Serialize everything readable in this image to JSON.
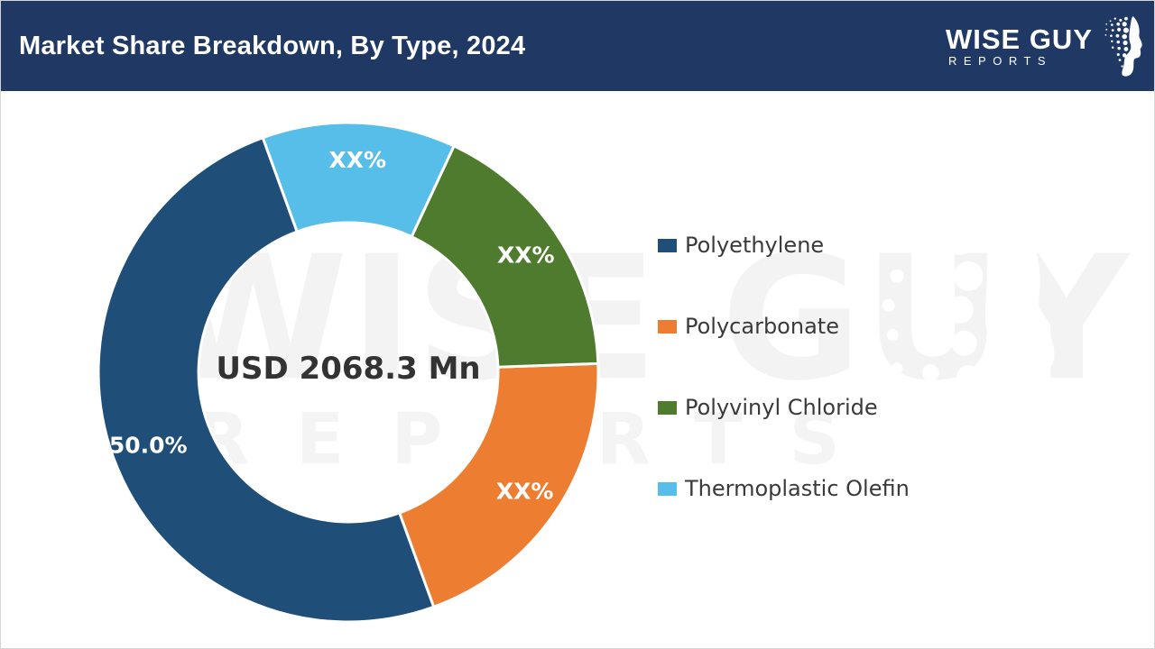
{
  "header": {
    "bg_color": "#1f3864",
    "title": "Market Share Breakdown, By Type, 2024",
    "logo": {
      "wordmark": "WISE GUY",
      "subtext": "REPORTS"
    }
  },
  "watermark": {
    "line1": "WISE GUY",
    "line2": "REPORTS"
  },
  "chart_data": {
    "type": "pie",
    "subtype": "donut",
    "title": "Market Share Breakdown, By Type, 2024",
    "center_label": "USD 2068.3 Mn",
    "legend_position": "right",
    "start_angle_deg": 110,
    "direction": "counterclockwise",
    "inner_radius_ratio": 0.6,
    "segments": [
      {
        "label": "Polyethylene",
        "display_value": "50.0%",
        "value": 50.0,
        "color": "#1f4e78"
      },
      {
        "label": "Polycarbonate",
        "display_value": "XX%",
        "value": 20.0,
        "color": "#ed7d31"
      },
      {
        "label": "Polyvinyl Chloride",
        "display_value": "XX%",
        "value": 17.5,
        "color": "#4e7b2d"
      },
      {
        "label": "Thermoplastic Olefin",
        "display_value": "XX%",
        "value": 12.5,
        "color": "#57bde9"
      }
    ]
  }
}
